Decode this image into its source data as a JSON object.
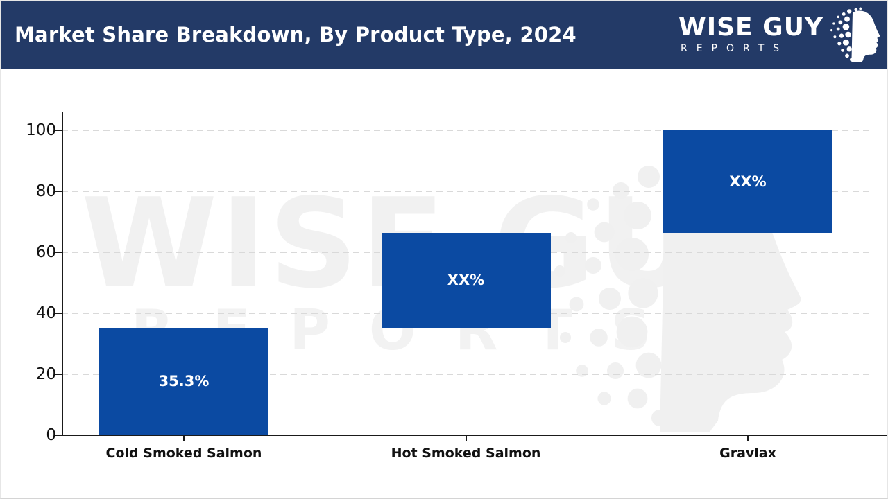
{
  "header": {
    "title": "Market Share Breakdown, By Product Type, 2024",
    "bg_color": "#233A67",
    "logo": {
      "wordmark": "WISE GUY",
      "subtitle": "REPORTS"
    }
  },
  "watermark": {
    "wordmark": "WISE GUY",
    "subtitle": "REPORTS"
  },
  "chart_data": {
    "type": "bar",
    "subtype": "waterfall-stacked-percentage",
    "title": "Market Share Breakdown, By Product Type, 2024",
    "categories": [
      "Cold Smoked Salmon",
      "Hot Smoked Salmon",
      "Gravlax"
    ],
    "segments": [
      {
        "category": "Cold Smoked Salmon",
        "start": 0,
        "end": 35.3,
        "label": "35.3%"
      },
      {
        "category": "Hot Smoked Salmon",
        "start": 35.3,
        "end": 66.4,
        "label": "XX%"
      },
      {
        "category": "Gravlax",
        "start": 66.4,
        "end": 100,
        "label": "XX%"
      }
    ],
    "y_ticks": [
      0,
      20,
      40,
      60,
      80,
      100
    ],
    "ylim": [
      0,
      106
    ],
    "xlabel": "",
    "ylabel": "",
    "grid": "horizontal-dashed",
    "legend": "none",
    "bar_color": "#0B4AA2",
    "value_label_color": "#FFFFFF",
    "grid_color": "#D9D9D9"
  }
}
